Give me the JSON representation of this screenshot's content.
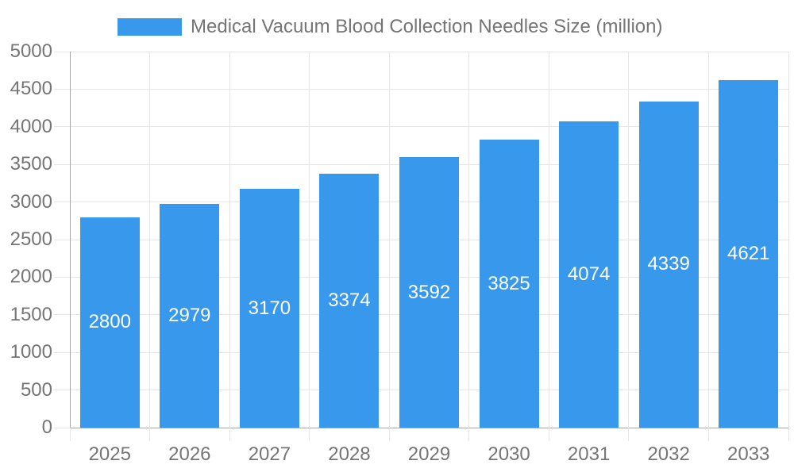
{
  "legend": {
    "label": "Medical Vacuum Blood Collection Needles Size (million)"
  },
  "chart_data": {
    "type": "bar",
    "title": "Medical Vacuum Blood Collection Needles Size (million)",
    "categories": [
      "2025",
      "2026",
      "2027",
      "2028",
      "2029",
      "2030",
      "2031",
      "2032",
      "2033"
    ],
    "values": [
      2800,
      2979,
      3170,
      3374,
      3592,
      3825,
      4074,
      4339,
      4621
    ],
    "xlabel": "",
    "ylabel": "",
    "ylim": [
      0,
      5000
    ],
    "ytick_step": 500,
    "grid": true,
    "legend_position": "top",
    "colors": {
      "bar": "#3898ec",
      "bar_label": "#ffffff",
      "axis_text": "#757575",
      "gridline": "#e6e6e6",
      "axis_line": "#a6a6a6"
    }
  }
}
